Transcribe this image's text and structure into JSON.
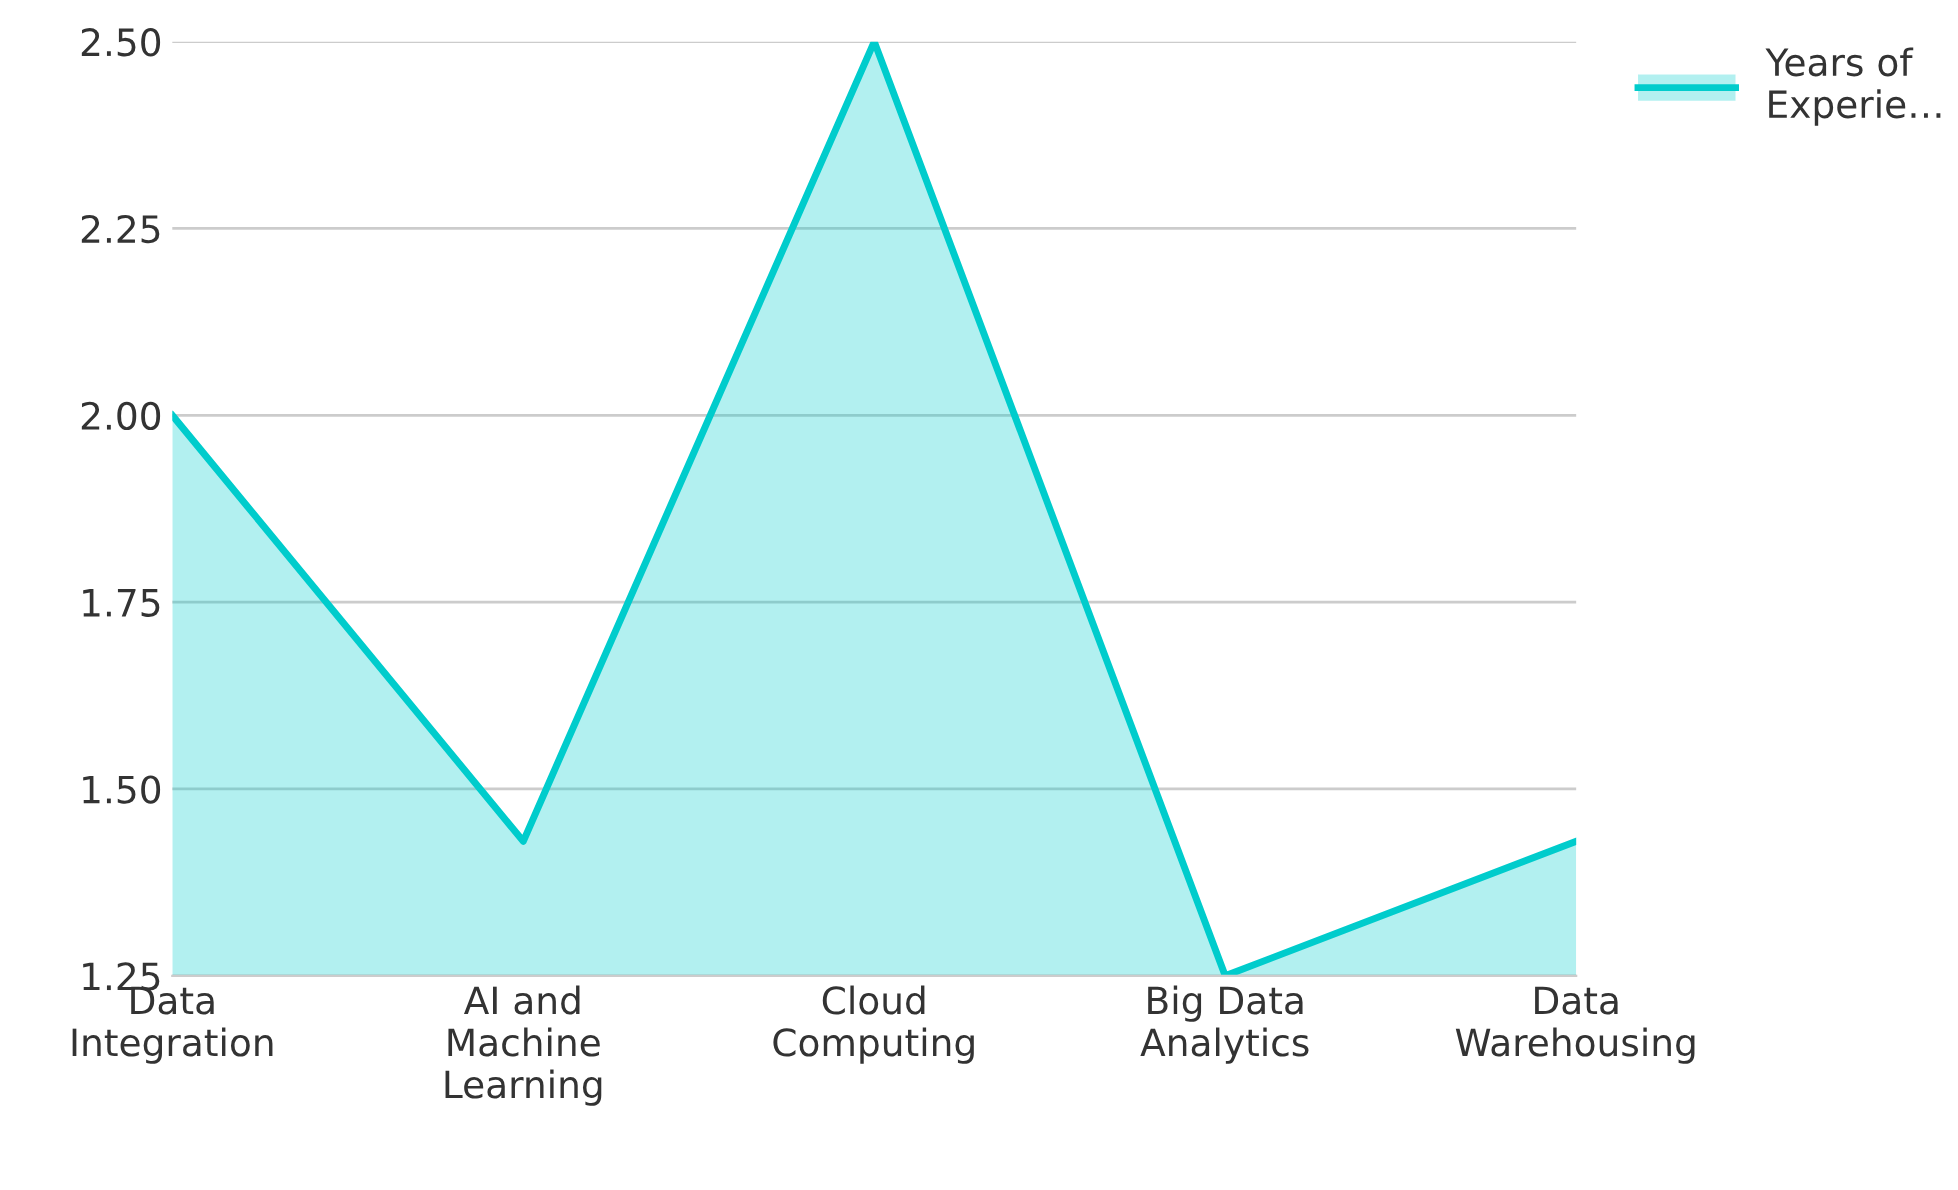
{
  "chart_data": {
    "type": "area",
    "categories": [
      "Data\nIntegration",
      "AI and\nMachine\nLearning",
      "Cloud\nComputing",
      "Big Data\nAnalytics",
      "Data\nWarehousing"
    ],
    "series": [
      {
        "name": "Years of\nExperie…",
        "color": "#00cccc",
        "values": [
          2.0,
          1.43,
          2.5,
          1.25,
          1.43
        ]
      }
    ],
    "ylim": [
      1.25,
      2.5
    ],
    "yticks": [
      {
        "value": 1.25,
        "label": "1.25"
      },
      {
        "value": 1.5,
        "label": "1.50"
      },
      {
        "value": 1.75,
        "label": "1.75"
      },
      {
        "value": 2.0,
        "label": "2.00"
      },
      {
        "value": 2.25,
        "label": "2.25"
      },
      {
        "value": 2.5,
        "label": "2.50"
      }
    ],
    "grid": "y",
    "legend": "top right"
  }
}
